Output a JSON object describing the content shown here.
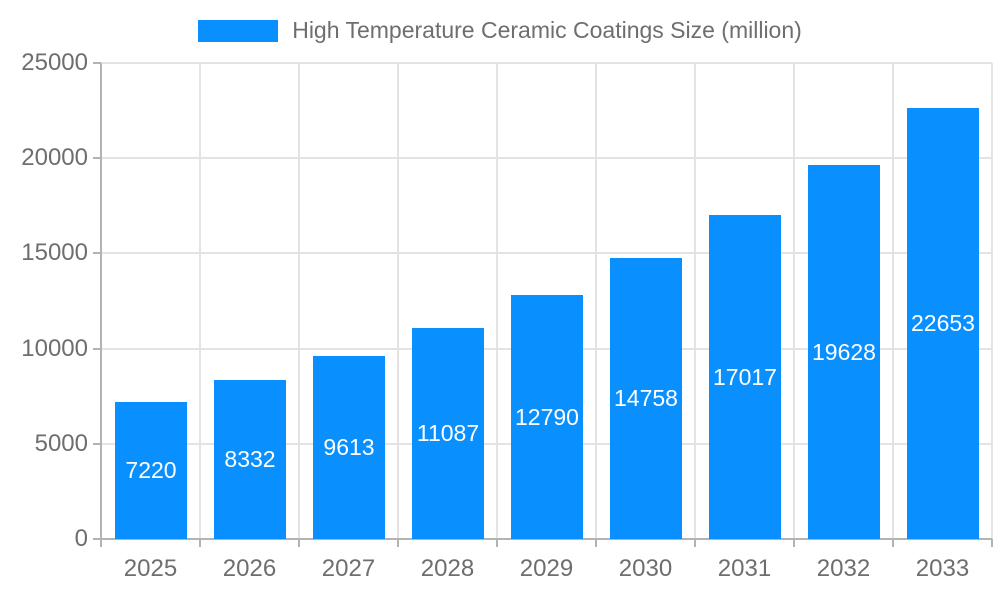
{
  "chart_data": {
    "type": "bar",
    "title": "High Temperature Ceramic Coatings Size (million)",
    "legend": {
      "label": "High Temperature Ceramic Coatings Size (million)",
      "position": "top"
    },
    "categories": [
      "2025",
      "2026",
      "2027",
      "2028",
      "2029",
      "2030",
      "2031",
      "2032",
      "2033"
    ],
    "series": [
      {
        "name": "High Temperature Ceramic Coatings Size (million)",
        "values": [
          7220,
          8332,
          9613,
          11087,
          12790,
          14758,
          17017,
          19628,
          22653
        ]
      }
    ],
    "value_labels": [
      "7220",
      "8332",
      "9613",
      "11087",
      "12790",
      "14758",
      "17017",
      "19628",
      "22653"
    ],
    "xlabel": "",
    "ylabel": "",
    "ylim": [
      0,
      25000
    ],
    "yticks": [
      0,
      5000,
      10000,
      15000,
      20000,
      25000
    ],
    "ytick_labels": [
      "0",
      "5000",
      "10000",
      "15000",
      "20000",
      "25000"
    ],
    "grid": true,
    "colors": {
      "bar": "#0a8fff",
      "value_label": "#ffffff",
      "text": "#6e6e6e",
      "grid": "#e3e3e3",
      "axis": "#b3b3b3",
      "background": "#ffffff"
    }
  }
}
